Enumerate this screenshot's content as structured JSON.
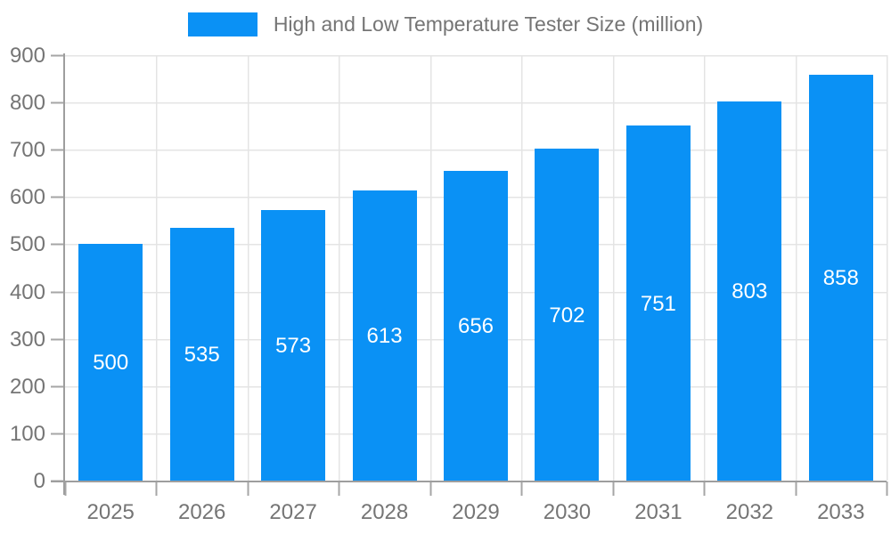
{
  "legend": {
    "label": "High and Low Temperature Tester Size (million)"
  },
  "chart_data": {
    "type": "bar",
    "title": "High and Low Temperature Tester Size (million)",
    "categories": [
      "2025",
      "2026",
      "2027",
      "2028",
      "2029",
      "2030",
      "2031",
      "2032",
      "2033"
    ],
    "values": [
      500,
      535,
      573,
      613,
      656,
      702,
      751,
      803,
      858
    ],
    "series": [
      {
        "name": "High and Low Temperature Tester Size (million)",
        "values": [
          500,
          535,
          573,
          613,
          656,
          702,
          751,
          803,
          858
        ]
      }
    ],
    "xlabel": "",
    "ylabel": "",
    "ylim": [
      0,
      900
    ],
    "ytick_step": 100,
    "ytick_labels": [
      "0",
      "100",
      "200",
      "300",
      "400",
      "500",
      "600",
      "700",
      "800",
      "900"
    ],
    "grid": true,
    "legend_position": "top",
    "bar_labels_shown": true,
    "colors": {
      "bar": "#0a91f5",
      "bar_value_label": "#ffffff",
      "gridline": "#e4e4e4",
      "axis_line": "#9e9e9e",
      "tick_mark": "#a6a6a6",
      "tick_label": "#757575",
      "background": "#ffffff"
    }
  }
}
